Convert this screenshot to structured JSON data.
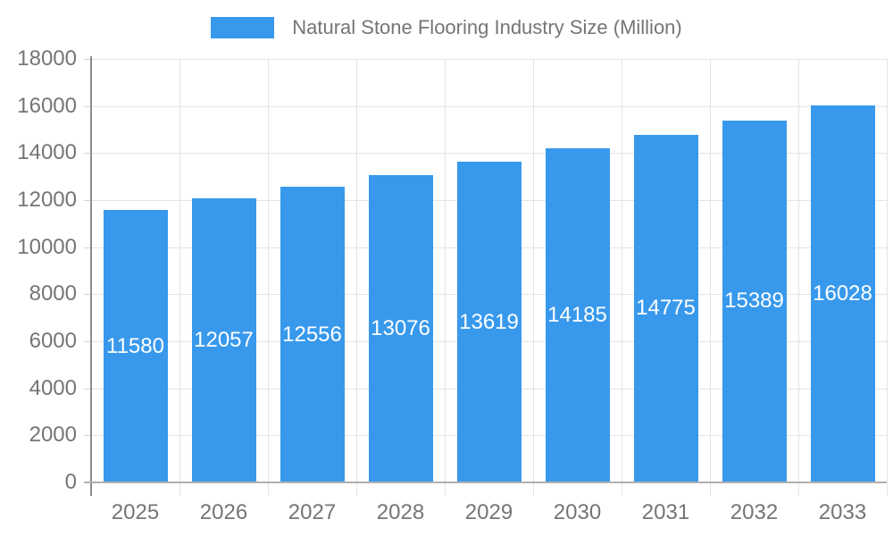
{
  "chart_data": {
    "type": "bar",
    "title": "Natural Stone Flooring Industry Size (Million)",
    "series_name": "Natural Stone Flooring Industry Size (Million)",
    "categories": [
      "2025",
      "2026",
      "2027",
      "2028",
      "2029",
      "2030",
      "2031",
      "2032",
      "2033"
    ],
    "values": [
      11580,
      12057,
      12556,
      13076,
      13619,
      14185,
      14775,
      15389,
      16028
    ],
    "value_labels_shown": true,
    "xlabel": "",
    "ylabel": "",
    "ylim": [
      0,
      18000
    ],
    "yticks": [
      0,
      2000,
      4000,
      6000,
      8000,
      10000,
      12000,
      14000,
      16000,
      18000
    ],
    "grid": true,
    "legend_position": "top"
  },
  "colors": {
    "bar": "#3899EC",
    "grid": "#e4e4e4",
    "axis_y": "#8c8c8c",
    "axis_x": "#b0b0b0",
    "tick": "#d4d4d4",
    "text": "#757575",
    "value_label": "#ffffff",
    "background": "#ffffff"
  }
}
